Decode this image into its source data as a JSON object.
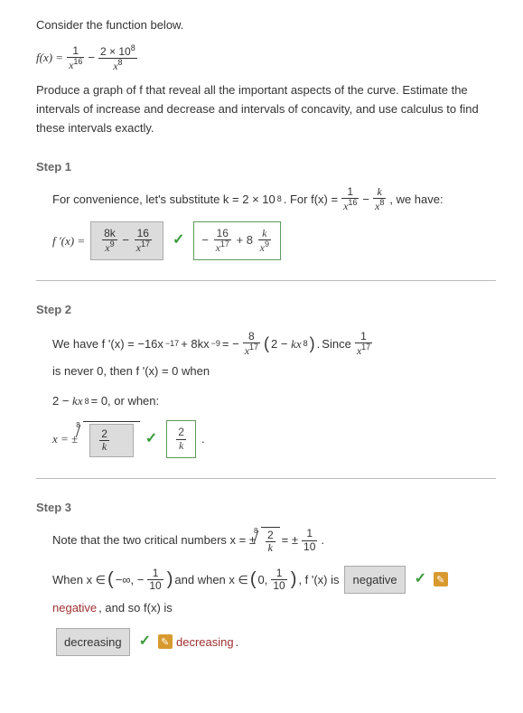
{
  "prompt": {
    "line1": "Consider the function below.",
    "func_lhs": "f(x) = ",
    "frac1_num": "1",
    "frac1_den_base": "x",
    "frac1_den_exp": "16",
    "minus": " − ",
    "frac2_num_a": "2 × 10",
    "frac2_num_exp": "8",
    "frac2_den_base": "x",
    "frac2_den_exp": "8",
    "line2": "Produce a graph of f that reveal all the important aspects of the curve. Estimate the intervals of increase and decrease and intervals of concavity, and use calculus to find these intervals exactly."
  },
  "step1": {
    "label": "Step 1",
    "text_a": "For convenience, let's substitute  k = 2 × 10",
    "k_exp": "8",
    "text_b": ".  For  f(x) = ",
    "r1_num": "1",
    "r1_den_b": "x",
    "r1_den_e": "16",
    "r2_num": "k",
    "r2_den_b": "x",
    "r2_den_e": "8",
    "text_c": ",  we have:",
    "deriv_lhs": "f '(x) = ",
    "ans_t1_num": "8k",
    "ans_t1_den": "9",
    "ans_t1_den_b": "x",
    "ans_t2_num": "16",
    "ans_t2_den_b": "x",
    "ans_t2_den_e": "17",
    "corr_lead": "− ",
    "corr_t1_num": "16",
    "corr_t1_den_b": "x",
    "corr_t1_den_e": "17",
    "corr_plus": " + 8",
    "corr_t2_num": "k",
    "corr_t2_den_b": "x",
    "corr_t2_den_e": "9"
  },
  "step2": {
    "label": "Step 2",
    "text_a": "We have  f '(x) = −16x",
    "e1": "−17",
    "text_b": " + 8kx",
    "e2": "−9",
    "text_c": " = − ",
    "f_num": "8",
    "f_den_b": "x",
    "f_den_e": "17",
    "paren_a": "(2 − kx",
    "paren_e": "8",
    "paren_b": ").",
    "text_d": "  Since  ",
    "g_num": "1",
    "g_den_b": "x",
    "g_den_e": "17",
    "text_e": "  is never 0, then  f '(x) = 0  when",
    "line2": "2 − kx",
    "line2_e": "8",
    "line2_b": " = 0,  or when:",
    "x_eq": "x = ±",
    "root_idx": "8",
    "ans_num": "2",
    "ans_den": "k",
    "corr_num": "2",
    "corr_den": "k",
    "period": "."
  },
  "step3": {
    "label": "Step 3",
    "text_a": "Note that the two critical numbers  x = ±",
    "root_idx": "8",
    "r_num": "2",
    "r_den": "k",
    "eq": " = ± ",
    "res_num": "1",
    "res_den": "10",
    "period1": ".",
    "when_a": "When  x ∈ ",
    "int1_a": "(−∞, − ",
    "int1_num": "1",
    "int1_den": "10",
    "int1_b": ")",
    "and": "  and when  x ∈ ",
    "int2_a": "(0, ",
    "int2_num": "1",
    "int2_den": "10",
    "int2_b": ")",
    "comma": ", f '(x)  is ",
    "ans1": "negative",
    "corr1": "negative",
    "tail1": " ,  and so  f(x)  is",
    "ans2": "decreasing",
    "corr2": "decreasing",
    "period2": " ."
  }
}
